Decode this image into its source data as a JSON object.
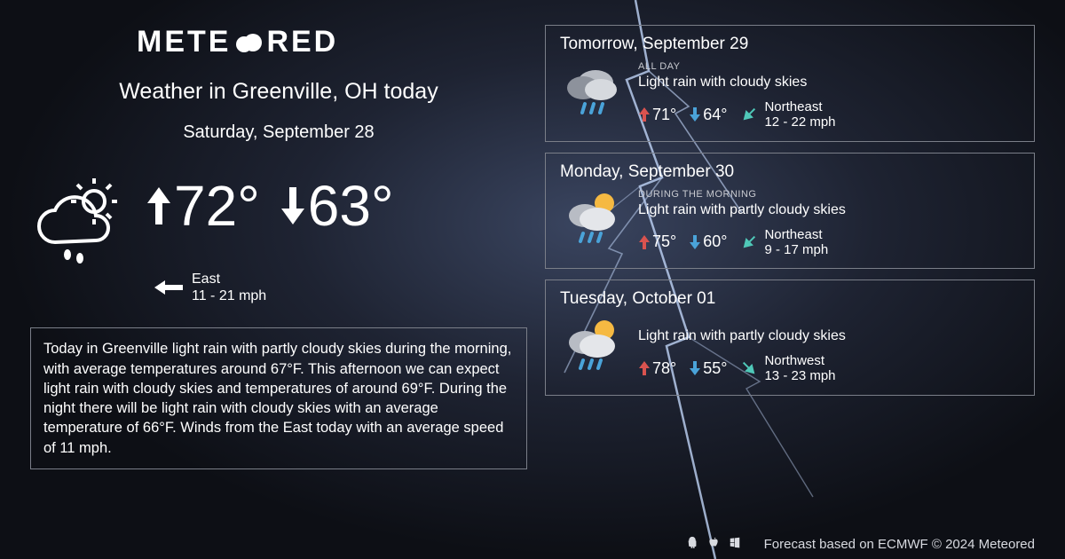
{
  "brand": {
    "pre": "METE",
    "post": "RED"
  },
  "header": {
    "title": "Weather in Greenville, OH today",
    "date": "Saturday, September 28"
  },
  "current": {
    "high": "72°",
    "low": "63°",
    "wind_dir": "East",
    "wind_speed": "11 - 21 mph"
  },
  "description": "Today in Greenville light rain with partly cloudy skies during the morning, with average temperatures around 67°F. This afternoon we can expect light rain with cloudy skies and temperatures of around 69°F. During the night there will be light rain with cloudy skies with an average temperature of 66°F. Winds from the East today with an average speed of 11 mph.",
  "forecast": [
    {
      "date": "Tomorrow, September 29",
      "period": "ALL DAY",
      "cond": "Light rain with cloudy skies",
      "high": "71°",
      "low": "64°",
      "wind_dir": "Northeast",
      "wind_speed": "12 - 22 mph",
      "icon": "rain-cloudy",
      "wind_angle": 225
    },
    {
      "date": "Monday, September 30",
      "period": "DURING THE MORNING",
      "cond": "Light rain with partly cloudy skies",
      "high": "75°",
      "low": "60°",
      "wind_dir": "Northeast",
      "wind_speed": "9 - 17 mph",
      "icon": "rain-partly",
      "wind_angle": 225
    },
    {
      "date": "Tuesday, October 01",
      "period": "",
      "cond": "Light rain with partly cloudy skies",
      "high": "78°",
      "low": "55°",
      "wind_dir": "Northwest",
      "wind_speed": "13 - 23 mph",
      "icon": "rain-partly",
      "wind_angle": 135
    }
  ],
  "footer": "Forecast based on ECMWF © 2024 Meteored",
  "colors": {
    "hi_arrow": "#d9534f",
    "lo_arrow": "#4aa3d9",
    "wind_arrow": "#4fc8b8"
  }
}
